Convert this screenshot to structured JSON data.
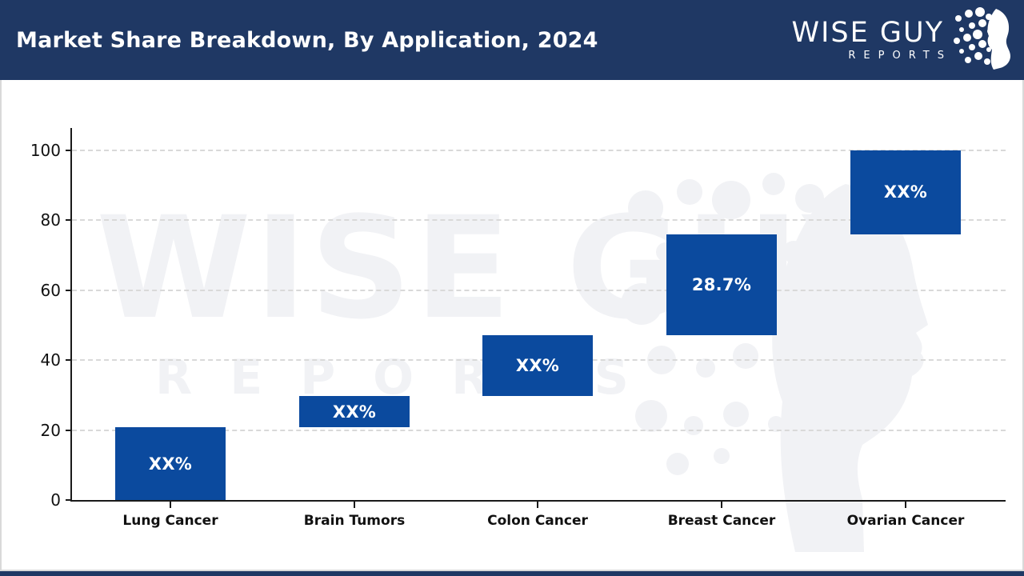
{
  "header": {
    "title": "Market Share Breakdown, By Application, 2024",
    "logo": {
      "wordmark": "WISE GUY",
      "subtext": "REPORTS"
    }
  },
  "watermark": {
    "wordmark": "WISE GUY",
    "subtext": "REPORTS"
  },
  "colors": {
    "header_bg": "#1F3864",
    "bar": "#0B4A9E",
    "bar_label": "#FFFFFF",
    "grid": "#D9D9D9",
    "axis": "#1A1A1A",
    "watermark": "#F1F2F5",
    "figure_border": "#D9D9D9"
  },
  "chart_data": {
    "type": "bar",
    "subtype": "waterfall-floating-segments",
    "title": "Market Share Breakdown, By Application, 2024",
    "categories": [
      "Lung Cancer",
      "Brain Tumors",
      "Colon Cancer",
      "Breast Cancer",
      "Ovarian Cancer"
    ],
    "series": [
      {
        "name": "Market share (%)",
        "segments": [
          {
            "category": "Lung Cancer",
            "start": 0,
            "end": 20.8,
            "value_label": "XX%"
          },
          {
            "category": "Brain Tumors",
            "start": 20.8,
            "end": 29.7,
            "value_label": "XX%"
          },
          {
            "category": "Colon Cancer",
            "start": 29.7,
            "end": 47.1,
            "value_label": "XX%"
          },
          {
            "category": "Breast Cancer",
            "start": 47.1,
            "end": 75.8,
            "value_label": "28.7%"
          },
          {
            "category": "Ovarian Cancer",
            "start": 75.8,
            "end": 100,
            "value_label": "XX%"
          }
        ]
      }
    ],
    "ylim": [
      0,
      106
    ],
    "yticks": [
      0,
      20,
      40,
      60,
      80,
      100
    ],
    "xlabel": "",
    "ylabel": "",
    "grid": "horizontal dashed",
    "legend_position": "none"
  }
}
